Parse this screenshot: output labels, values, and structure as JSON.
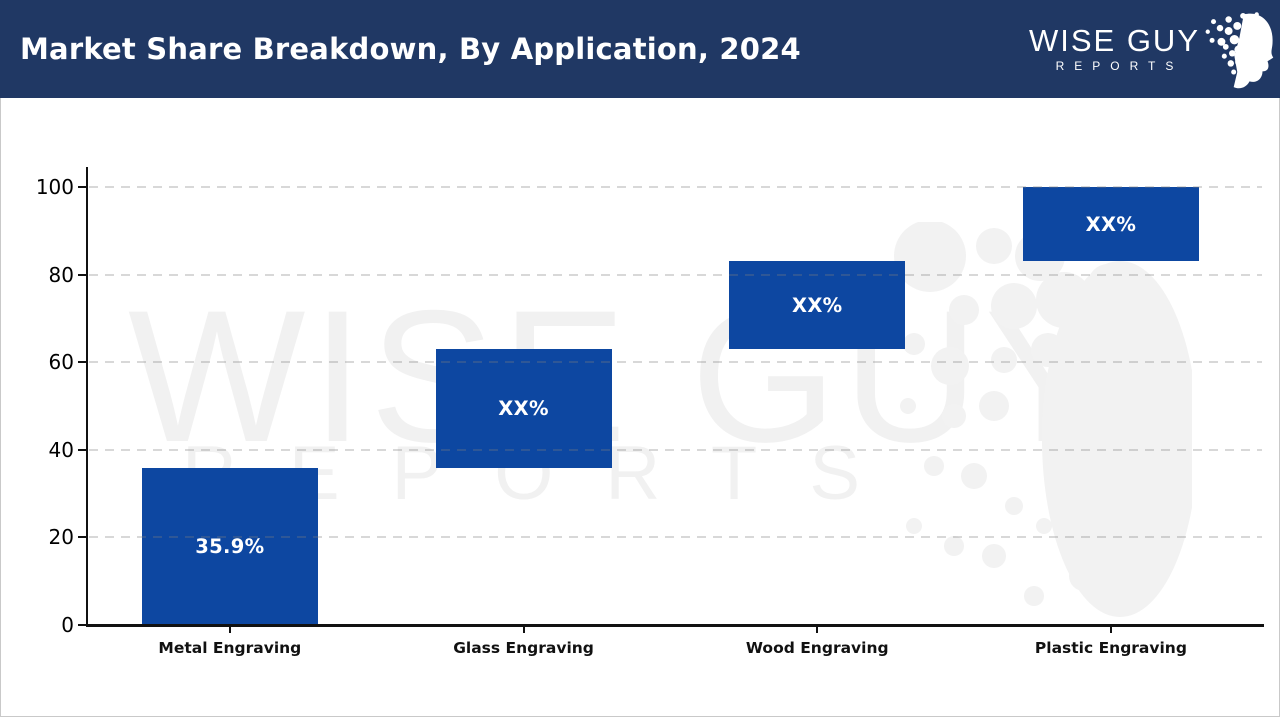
{
  "header": {
    "title": "Market Share Breakdown, By Application, 2024",
    "bg_color": "#203864",
    "logo": {
      "line1": "WISE GUY",
      "line2": "REPORTS"
    }
  },
  "watermark": {
    "line1": "WISE GUY",
    "line2": "REPORTS"
  },
  "chart_data": {
    "type": "bar",
    "subtype": "floating-waterfall-segments",
    "title": "Market Share Breakdown, By Application, 2024",
    "categories": [
      "Metal Engraving",
      "Glass Engraving",
      "Wood Engraving",
      "Plastic Engraving"
    ],
    "series": [
      {
        "name": "Market share (%)",
        "segments": [
          {
            "start": 0,
            "end": 35.9,
            "label": "35.9%"
          },
          {
            "start": 35.9,
            "end": 63,
            "label": "XX%"
          },
          {
            "start": 63,
            "end": 83,
            "label": "XX%"
          },
          {
            "start": 83,
            "end": 100,
            "label": "XX%"
          }
        ]
      }
    ],
    "xlabel": "",
    "ylabel": "",
    "ylim": [
      0,
      100
    ],
    "yticks": [
      0,
      20,
      40,
      60,
      80,
      100
    ],
    "grid": "horizontal-dashed",
    "legend": "none",
    "bar_color": "#0d47a1",
    "bar_label_color": "#ffffff"
  }
}
